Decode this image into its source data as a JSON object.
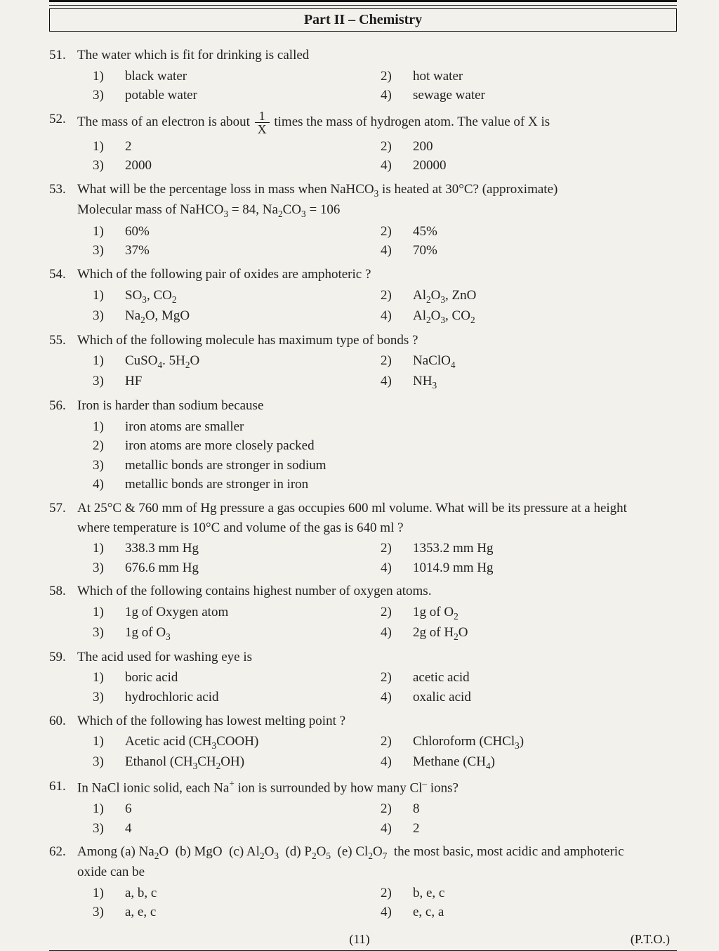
{
  "header": "Part II – Chemistry",
  "page_number": "(11)",
  "pto": "(P.T.O.)",
  "questions": [
    {
      "num": "51.",
      "stem_html": "The water which is fit for drinking is called",
      "layout": "two-col",
      "opts": [
        {
          "n": "1)",
          "t": "black water"
        },
        {
          "n": "2)",
          "t": "hot water"
        },
        {
          "n": "3)",
          "t": "potable water"
        },
        {
          "n": "4)",
          "t": "sewage water"
        }
      ]
    },
    {
      "num": "52.",
      "stem_html": "The mass of an electron is about&nbsp;<span class='frac'><span class='num'>1</span><span class='den'>X</span></span>&nbsp;times the mass of hydrogen atom. The value of X is",
      "layout": "two-col",
      "opts": [
        {
          "n": "1)",
          "t": "2"
        },
        {
          "n": "2)",
          "t": "200"
        },
        {
          "n": "3)",
          "t": "2000"
        },
        {
          "n": "4)",
          "t": "20000"
        }
      ]
    },
    {
      "num": "53.",
      "stem_html": "What will be the percentage loss in mass when NaHCO<sub>3</sub> is heated at 30°C? (approximate)<br>Molecular mass of NaHCO<sub>3</sub> = 84, Na<sub>2</sub>CO<sub>3</sub> = 106",
      "layout": "two-col",
      "opts": [
        {
          "n": "1)",
          "t": "60%"
        },
        {
          "n": "2)",
          "t": "45%"
        },
        {
          "n": "3)",
          "t": "37%"
        },
        {
          "n": "4)",
          "t": "70%"
        }
      ]
    },
    {
      "num": "54.",
      "stem_html": "Which of the following pair of oxides are amphoteric ?",
      "layout": "two-col",
      "opts": [
        {
          "n": "1)",
          "t": "SO<sub>3</sub>, CO<sub>2</sub>"
        },
        {
          "n": "2)",
          "t": "Al<sub>2</sub>O<sub>3</sub>, ZnO"
        },
        {
          "n": "3)",
          "t": "Na<sub>2</sub>O, MgO"
        },
        {
          "n": "4)",
          "t": "Al<sub>2</sub>O<sub>3</sub>, CO<sub>2</sub>"
        }
      ]
    },
    {
      "num": "55.",
      "stem_html": "Which of the following molecule has maximum type of bonds ?",
      "layout": "two-col",
      "opts": [
        {
          "n": "1)",
          "t": "CuSO<sub>4</sub>. 5H<sub>2</sub>O"
        },
        {
          "n": "2)",
          "t": "NaClO<sub>4</sub>"
        },
        {
          "n": "3)",
          "t": "HF"
        },
        {
          "n": "4)",
          "t": "NH<sub>3</sub>"
        }
      ]
    },
    {
      "num": "56.",
      "stem_html": "Iron is harder than sodium because",
      "layout": "one-col",
      "opts": [
        {
          "n": "1)",
          "t": "iron atoms are smaller"
        },
        {
          "n": "2)",
          "t": "iron atoms are more closely packed"
        },
        {
          "n": "3)",
          "t": "metallic bonds are stronger in sodium"
        },
        {
          "n": "4)",
          "t": "metallic bonds are stronger in iron"
        }
      ]
    },
    {
      "num": "57.",
      "stem_html": "At 25°C &amp; 760 mm of Hg pressure a gas occupies 600 ml volume. What will be its pressure at a height where temperature is 10°C and volume of the gas is 640 ml ?",
      "layout": "two-col",
      "opts": [
        {
          "n": "1)",
          "t": "338.3 mm Hg"
        },
        {
          "n": "2)",
          "t": "1353.2 mm Hg"
        },
        {
          "n": "3)",
          "t": "676.6 mm Hg"
        },
        {
          "n": "4)",
          "t": "1014.9 mm Hg"
        }
      ]
    },
    {
      "num": "58.",
      "stem_html": "Which of the following contains highest number of oxygen atoms.",
      "layout": "two-col",
      "opts": [
        {
          "n": "1)",
          "t": "1g of Oxygen atom"
        },
        {
          "n": "2)",
          "t": "1g of O<sub>2</sub>"
        },
        {
          "n": "3)",
          "t": "1g of O<sub>3</sub>"
        },
        {
          "n": "4)",
          "t": "2g of H<sub>2</sub>O"
        }
      ]
    },
    {
      "num": "59.",
      "stem_html": "The acid used for washing eye is",
      "layout": "two-col",
      "opts": [
        {
          "n": "1)",
          "t": "boric acid"
        },
        {
          "n": "2)",
          "t": "acetic acid"
        },
        {
          "n": "3)",
          "t": "hydrochloric acid"
        },
        {
          "n": "4)",
          "t": "oxalic acid"
        }
      ]
    },
    {
      "num": "60.",
      "stem_html": "Which of the following has lowest melting point ?",
      "layout": "two-col",
      "opts": [
        {
          "n": "1)",
          "t": "Acetic acid (CH<sub>3</sub>COOH)"
        },
        {
          "n": "2)",
          "t": "Chloroform (CHCl<sub>3</sub>)"
        },
        {
          "n": "3)",
          "t": "Ethanol (CH<sub>3</sub>CH<sub>2</sub>OH)"
        },
        {
          "n": "4)",
          "t": "Methane (CH<sub>4</sub>)"
        }
      ]
    },
    {
      "num": "61.",
      "stem_html": "In NaCl ionic solid, each Na<sup>+</sup> ion is surrounded by how many Cl<sup>–</sup> ions?",
      "layout": "two-col",
      "opts": [
        {
          "n": "1)",
          "t": "6"
        },
        {
          "n": "2)",
          "t": "8"
        },
        {
          "n": "3)",
          "t": "4"
        },
        {
          "n": "4)",
          "t": "2"
        }
      ]
    },
    {
      "num": "62.",
      "stem_html": "Among (a) Na<sub>2</sub>O&nbsp; (b) MgO&nbsp; (c) Al<sub>2</sub>O<sub>3</sub>&nbsp; (d) P<sub>2</sub>O<sub>5</sub>&nbsp; (e) Cl<sub>2</sub>O<sub>7</sub>&nbsp; the most basic, most acidic and amphoteric oxide can be",
      "layout": "two-col",
      "opts": [
        {
          "n": "1)",
          "t": "a, b, c"
        },
        {
          "n": "2)",
          "t": "b, e, c"
        },
        {
          "n": "3)",
          "t": "a, e, c"
        },
        {
          "n": "4)",
          "t": "e, c, a"
        }
      ]
    }
  ]
}
